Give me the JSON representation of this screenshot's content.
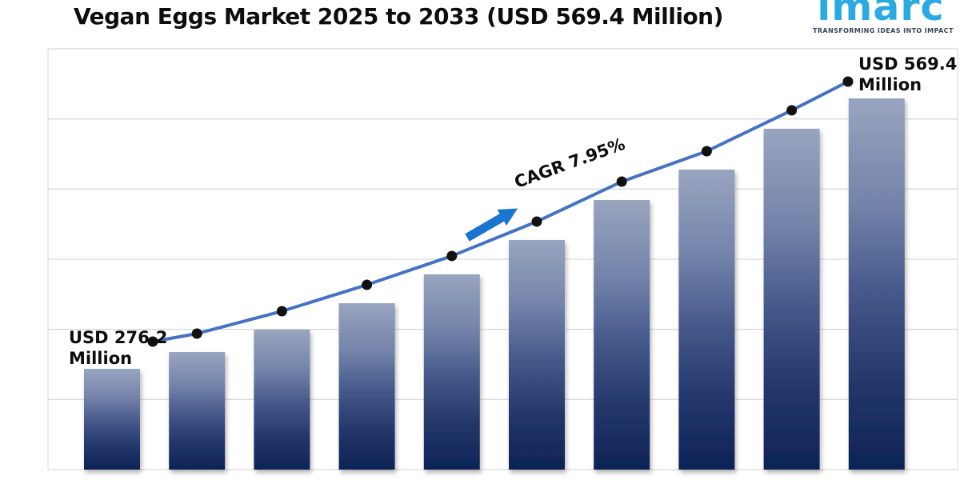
{
  "header": {
    "title": "Vegan Eggs Market 2025 to 2033 (USD 569.4 Million)",
    "logo": {
      "wordmark": "imarc",
      "tagline": "TRANSFORMING IDEAS INTO IMPACT",
      "wordmark_color": "#29abe2",
      "tagline_color": "#39455a"
    }
  },
  "chart_data": {
    "type": "bar",
    "overlay": "line",
    "title": "Vegan Eggs Market 2025 to 2033 (USD 569.4 Million)",
    "n_points": 10,
    "values": [
      276.2,
      294.4,
      318.7,
      347.3,
      378.6,
      415.9,
      459.2,
      492.2,
      536.5,
      569.4
    ],
    "values_unit": "USD Million",
    "values_estimated_from_pixels": true,
    "first_value_labeled": 276.2,
    "last_value_labeled": 569.4,
    "annotations": {
      "cagr_label": "CAGR 7.95%",
      "start": {
        "line1": "USD 276.2",
        "line2": "Million"
      },
      "end": {
        "line1": "USD 569.4",
        "line2": "Million"
      }
    },
    "x_axis": {
      "tick_labels_visible": false
    },
    "y_axis": {
      "tick_labels_visible": false,
      "gridline_count": 7
    },
    "legend": "none",
    "colors": {
      "bar_gradient_top": "#98a5bf",
      "bar_gradient_mid": "#46598b",
      "bar_gradient_bottom": "#0d2356",
      "line": "#4472c4",
      "marker": "#111111",
      "arrow": "#1b75cf",
      "gridline": "#d9d9d9",
      "text": "#0d0d0d"
    }
  }
}
